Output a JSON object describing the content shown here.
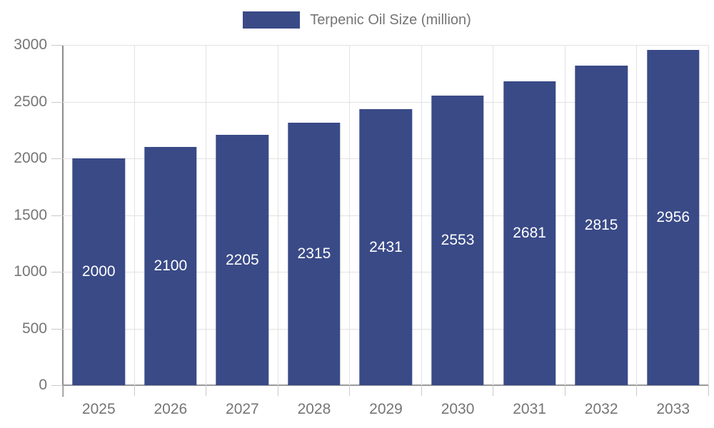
{
  "legend": {
    "label": "Terpenic Oil Size (million)"
  },
  "chart_data": {
    "type": "bar",
    "title": "Terpenic Oil Size (million)",
    "categories": [
      "2025",
      "2026",
      "2027",
      "2028",
      "2029",
      "2030",
      "2031",
      "2032",
      "2033"
    ],
    "series": [
      {
        "name": "Terpenic Oil Size (million)",
        "values": [
          2000,
          2100,
          2205,
          2315,
          2431,
          2553,
          2681,
          2815,
          2956
        ]
      }
    ],
    "bar_value_labels": [
      "2000",
      "2100",
      "2205",
      "2315",
      "2431",
      "2553",
      "2681",
      "2815",
      "2956"
    ],
    "xlabel": "",
    "ylabel": "",
    "ylim": [
      0,
      3000
    ],
    "yticks": [
      0,
      500,
      1000,
      1500,
      2000,
      2500,
      3000
    ],
    "grid": true,
    "legend_position": "top",
    "colors": {
      "bar": "#3A4A87",
      "bar_label_text": "#ffffff",
      "axis_text": "#757575",
      "gridline": "#e2e2e2",
      "axis_line": "#9a9a9a",
      "tick": "#c9c9c9",
      "background": "#ffffff"
    }
  }
}
